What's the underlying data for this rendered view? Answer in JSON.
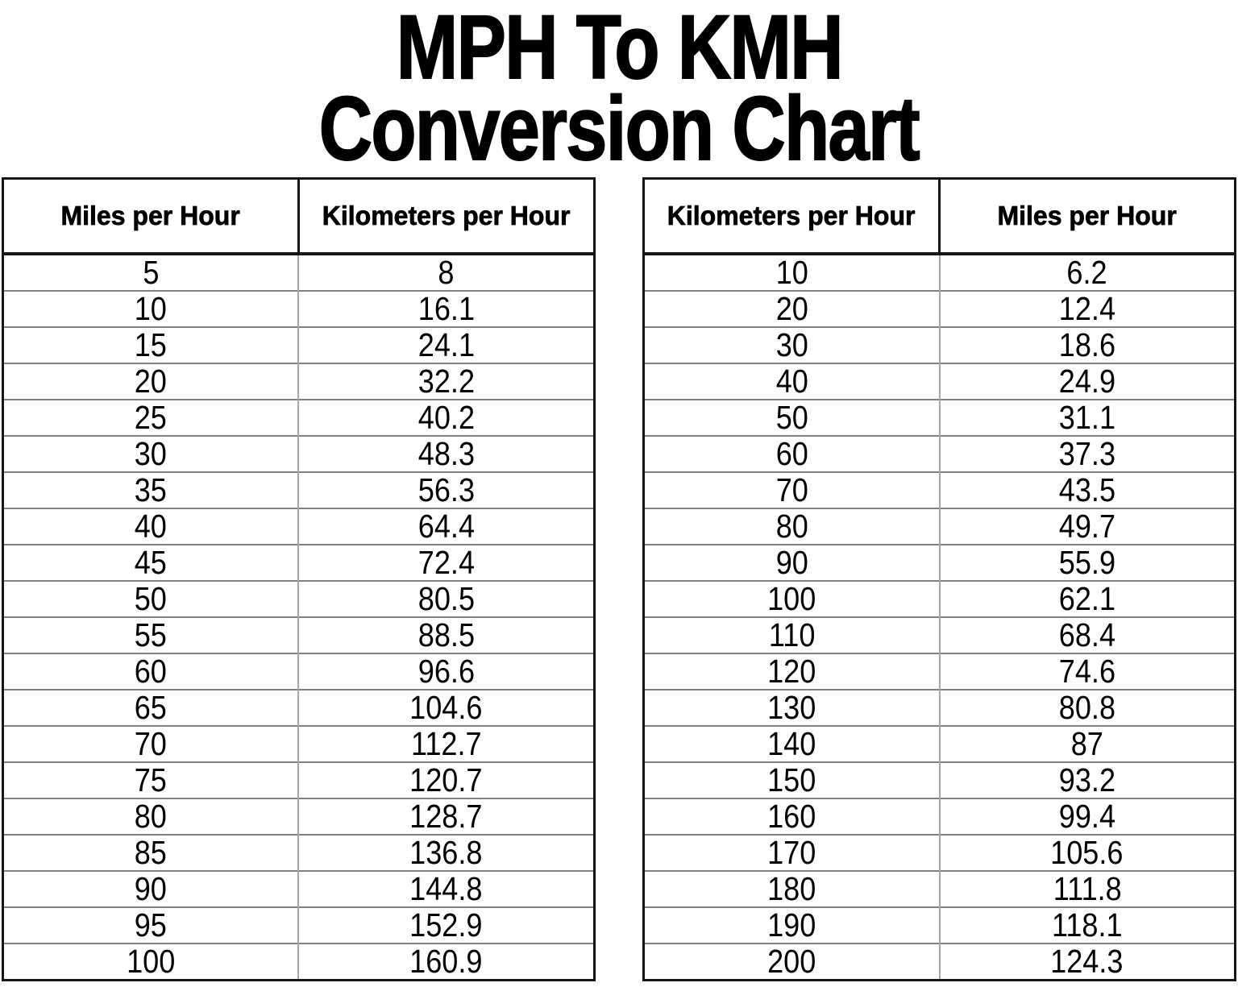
{
  "title": {
    "line1": "MPH To KMH",
    "line2": "Conversion Chart"
  },
  "tables": [
    {
      "id": "mph-to-kmh",
      "headers": [
        "Miles per Hour",
        "Kilometers per Hour"
      ],
      "rows": [
        [
          "5",
          "8"
        ],
        [
          "10",
          "16.1"
        ],
        [
          "15",
          "24.1"
        ],
        [
          "20",
          "32.2"
        ],
        [
          "25",
          "40.2"
        ],
        [
          "30",
          "48.3"
        ],
        [
          "35",
          "56.3"
        ],
        [
          "40",
          "64.4"
        ],
        [
          "45",
          "72.4"
        ],
        [
          "50",
          "80.5"
        ],
        [
          "55",
          "88.5"
        ],
        [
          "60",
          "96.6"
        ],
        [
          "65",
          "104.6"
        ],
        [
          "70",
          "112.7"
        ],
        [
          "75",
          "120.7"
        ],
        [
          "80",
          "128.7"
        ],
        [
          "85",
          "136.8"
        ],
        [
          "90",
          "144.8"
        ],
        [
          "95",
          "152.9"
        ],
        [
          "100",
          "160.9"
        ]
      ]
    },
    {
      "id": "kmh-to-mph",
      "headers": [
        "Kilometers per Hour",
        "Miles per Hour"
      ],
      "rows": [
        [
          "10",
          "6.2"
        ],
        [
          "20",
          "12.4"
        ],
        [
          "30",
          "18.6"
        ],
        [
          "40",
          "24.9"
        ],
        [
          "50",
          "31.1"
        ],
        [
          "60",
          "37.3"
        ],
        [
          "70",
          "43.5"
        ],
        [
          "80",
          "49.7"
        ],
        [
          "90",
          "55.9"
        ],
        [
          "100",
          "62.1"
        ],
        [
          "110",
          "68.4"
        ],
        [
          "120",
          "74.6"
        ],
        [
          "130",
          "80.8"
        ],
        [
          "140",
          "87"
        ],
        [
          "150",
          "93.2"
        ],
        [
          "160",
          "99.4"
        ],
        [
          "170",
          "105.6"
        ],
        [
          "180",
          "111.8"
        ],
        [
          "190",
          "118.1"
        ],
        [
          "200",
          "124.3"
        ]
      ]
    }
  ],
  "colors": {
    "text": "#000000",
    "table_border": "#161616",
    "row_divider": "#7f7f7f",
    "column_divider": "#a6a6a6",
    "background": "#ffffff"
  }
}
